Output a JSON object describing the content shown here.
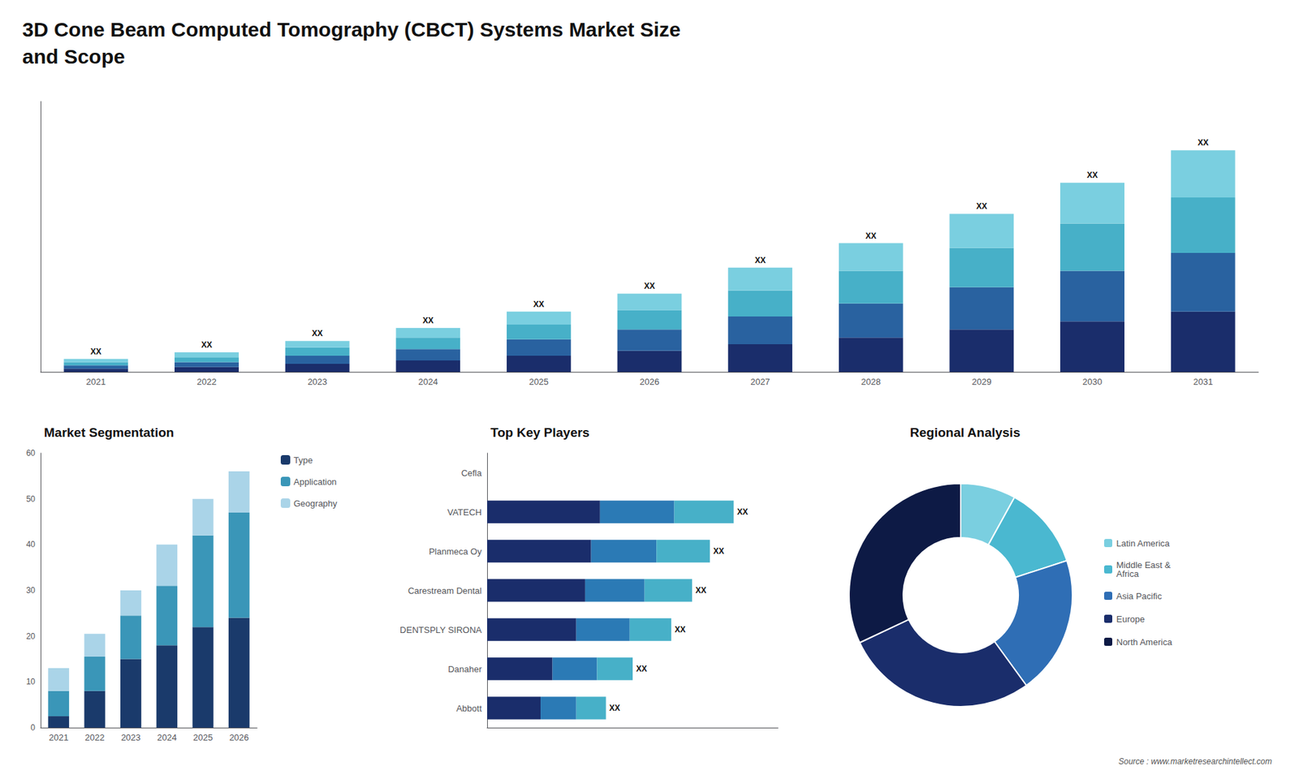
{
  "chart_data": [
    {
      "type": "bar",
      "title": "3D Cone Beam Computed Tomography (CBCT) Systems Market Size\nand Scope",
      "categories": [
        "2021",
        "2022",
        "2023",
        "2024",
        "2025",
        "2026",
        "2027",
        "2028",
        "2029",
        "2030",
        "2031"
      ],
      "series": [
        {
          "color": "#1a2d6b",
          "values": [
            2,
            3,
            5,
            7,
            10,
            13,
            17,
            21,
            26,
            31,
            37
          ]
        },
        {
          "color": "#2962a0",
          "values": [
            2,
            3,
            5,
            7,
            10,
            13,
            17,
            21,
            26,
            31,
            36
          ]
        },
        {
          "color": "#47b0c8",
          "values": [
            2,
            3,
            5,
            7,
            9,
            12,
            16,
            20,
            24,
            29,
            34
          ]
        },
        {
          "color": "#7acfe0",
          "values": [
            2,
            3,
            4,
            6,
            8,
            10,
            14,
            17,
            21,
            25,
            29
          ]
        }
      ],
      "stacked": true,
      "ylim": [
        0,
        165.92
      ],
      "grid": false,
      "tick_labels": "x",
      "annotations": [
        {
          "category": "2021",
          "text": "XX"
        },
        {
          "category": "2022",
          "text": "XX"
        },
        {
          "category": "2023",
          "text": "XX"
        },
        {
          "category": "2024",
          "text": "XX"
        },
        {
          "category": "2025",
          "text": "XX"
        },
        {
          "category": "2026",
          "text": "XX"
        },
        {
          "category": "2027",
          "text": "XX"
        },
        {
          "category": "2028",
          "text": "XX"
        },
        {
          "category": "2029",
          "text": "XX"
        },
        {
          "category": "2030",
          "text": "XX"
        },
        {
          "category": "2031",
          "text": "XX"
        },
        {
          "text": "Source : www.marketresearchintellect.com"
        }
      ]
    },
    {
      "type": "bar",
      "title": "Market Segmentation",
      "categories": [
        "2021",
        "2022",
        "2023",
        "2024",
        "2025",
        "2026"
      ],
      "series": [
        {
          "name": "Type",
          "color": "#1a3a6b",
          "values": [
            2.5,
            8,
            15,
            18,
            22,
            24
          ]
        },
        {
          "name": "Application",
          "color": "#3a96b8",
          "values": [
            5.5,
            7.5,
            9.5,
            13,
            20,
            23
          ]
        },
        {
          "name": "Geography",
          "color": "#aad4e8",
          "values": [
            5,
            5,
            5.5,
            9,
            8,
            9
          ]
        }
      ],
      "stacked": true,
      "ylim": [
        0,
        60
      ],
      "yticks": [
        0,
        10,
        20,
        30,
        40,
        50,
        60
      ],
      "grid": false,
      "legend": "right"
    },
    {
      "type": "bar",
      "title": "Top Key Players",
      "orientation": "horizontal",
      "categories": [
        "Cefla",
        "VATECH",
        "Planmeca Oy",
        "Carestream Dental",
        "DENTSPLY SIRONA",
        "Danaher",
        "Abbott"
      ],
      "series": [
        {
          "color": "#1a2d6b",
          "values": [
            0,
            38,
            35,
            33,
            30,
            22,
            18
          ]
        },
        {
          "color": "#2b7ab5",
          "values": [
            0,
            25,
            22,
            20,
            18,
            15,
            12
          ]
        },
        {
          "color": "#47b0c8",
          "values": [
            0,
            20,
            18,
            16,
            14,
            12,
            10
          ]
        }
      ],
      "stacked": true,
      "xlim": [
        0,
        97.94
      ],
      "grid": false,
      "tick_labels": "y",
      "annotations": [
        {
          "category": "VATECH",
          "text": "XX"
        },
        {
          "category": "Planmeca Oy",
          "text": "XX"
        },
        {
          "category": "Carestream Dental",
          "text": "XX"
        },
        {
          "category": "DENTSPLY SIRONA",
          "text": "XX"
        },
        {
          "category": "Danaher",
          "text": "XX"
        },
        {
          "category": "Abbott",
          "text": "XX"
        }
      ]
    },
    {
      "type": "donut",
      "title": "Regional Analysis",
      "categories": [
        "Latin America",
        "Middle East &\nAfrica",
        "Asia Pacific",
        "Europe",
        "North America"
      ],
      "values": [
        8,
        12,
        20,
        28,
        32
      ],
      "colors": [
        "#7acfe0",
        "#4ab8d0",
        "#2f6eb5",
        "#1a2d6b",
        "#0d1a45"
      ],
      "legend": "right"
    }
  ]
}
